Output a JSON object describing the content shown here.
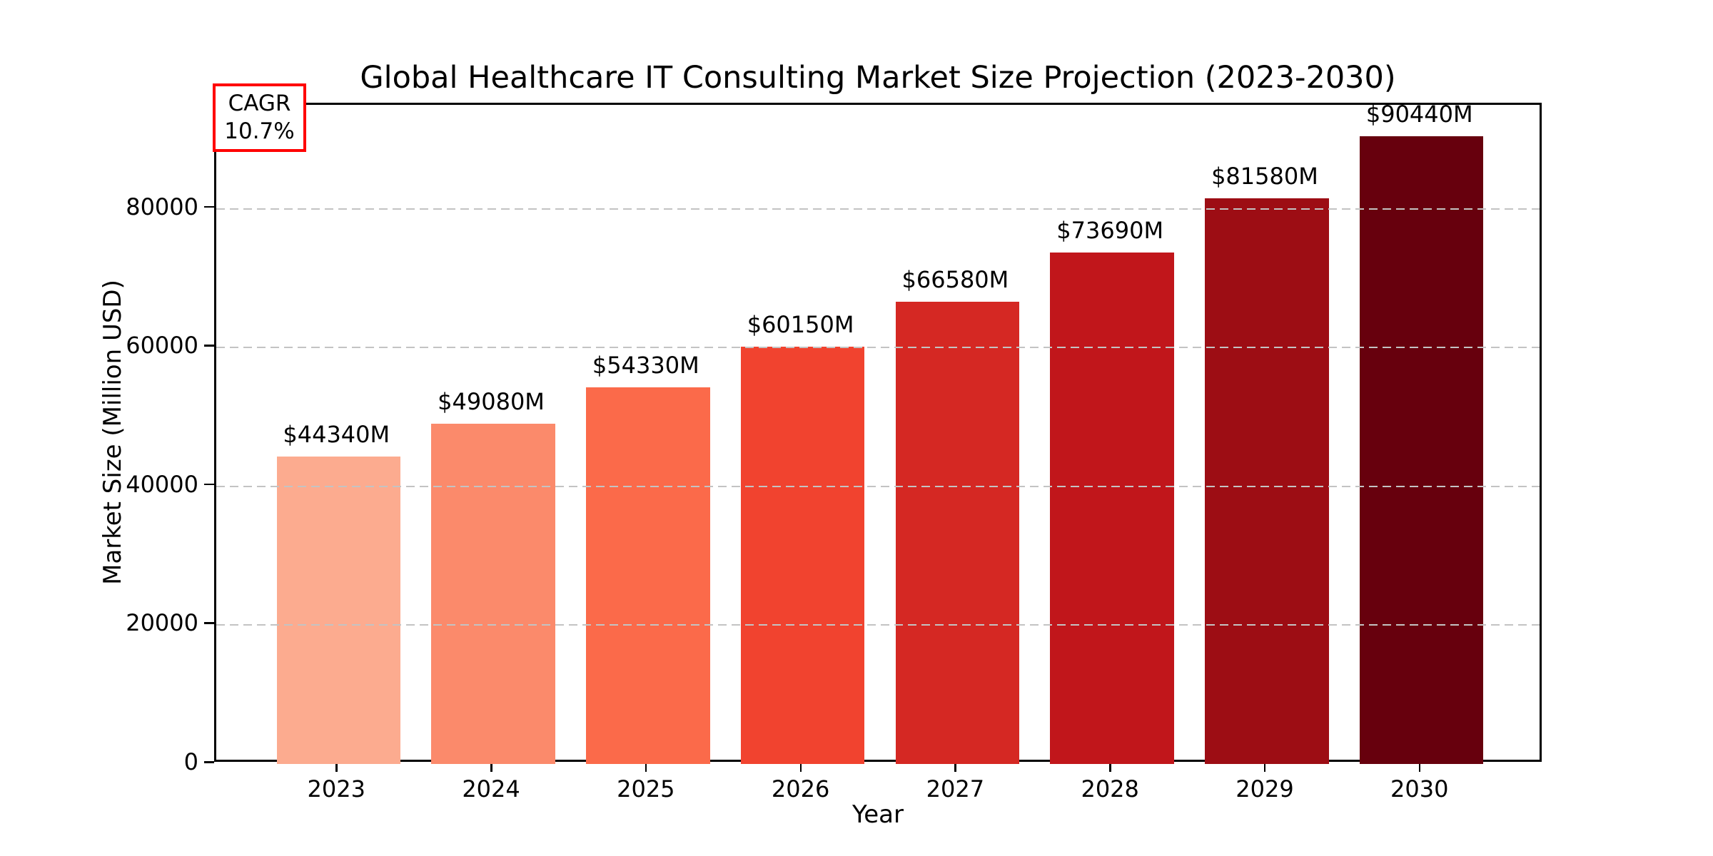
{
  "title": "Global Healthcare IT Consulting Market Size Projection (2023-2030)",
  "annotation": {
    "line1": "CAGR",
    "line2": "10.7%",
    "border_color": "#ff0000"
  },
  "chart_data": {
    "type": "bar",
    "title": "Global Healthcare IT Consulting Market Size Projection (2023-2030)",
    "xlabel": "Year",
    "ylabel": "Market Size (Million USD)",
    "categories": [
      "2023",
      "2024",
      "2025",
      "2026",
      "2027",
      "2028",
      "2029",
      "2030"
    ],
    "values": [
      44340,
      49080,
      54330,
      60150,
      66580,
      73690,
      81580,
      90440
    ],
    "bar_labels": [
      "$44340M",
      "$49080M",
      "$54330M",
      "$60150M",
      "$66580M",
      "$73690M",
      "$81580M",
      "$90440M"
    ],
    "bar_colors": [
      "#fcab8f",
      "#fb8a6b",
      "#fb6a4a",
      "#f1432f",
      "#d52823",
      "#c1161b",
      "#9d0d14",
      "#67000d"
    ],
    "ylim": [
      0,
      95000
    ],
    "yticks": [
      0,
      20000,
      40000,
      60000,
      80000
    ],
    "grid": "horizontal dashed, color #c3c3c3, drawn over bars",
    "legend": "none",
    "annotation_text": "CAGR 10.7%"
  }
}
